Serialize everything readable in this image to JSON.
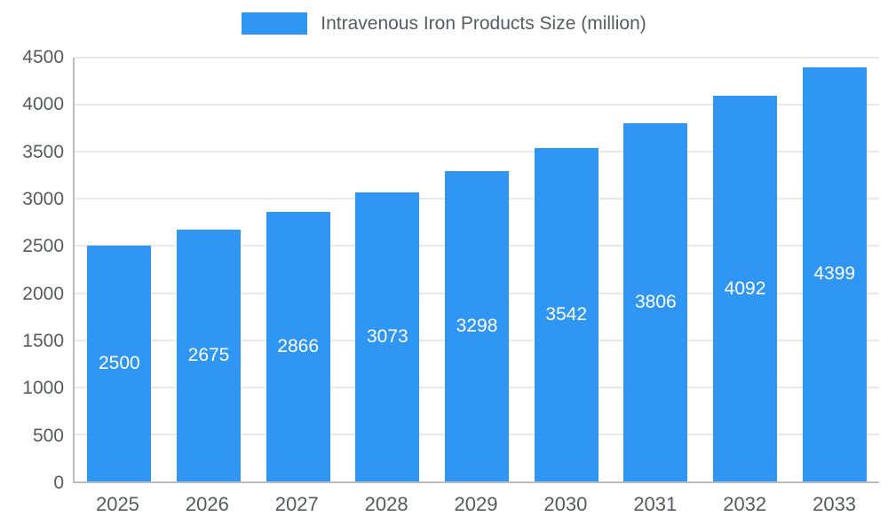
{
  "legend": {
    "label": "Intravenous Iron Products Size (million)",
    "swatch_color": "#2F96F3"
  },
  "chart_data": {
    "type": "bar",
    "title": "Intravenous Iron Products Size (million)",
    "categories": [
      "2025",
      "2026",
      "2027",
      "2028",
      "2029",
      "2030",
      "2031",
      "2032",
      "2033"
    ],
    "values": [
      2500,
      2675,
      2866,
      3073,
      3298,
      3542,
      3806,
      4092,
      4399
    ],
    "xlabel": "",
    "ylabel": "",
    "ylim": [
      0,
      4500
    ],
    "ytick_step": 500,
    "grid": true,
    "legend_position": "top",
    "bar_color": "#2F96F3",
    "value_label_color": "#ffffff",
    "axis_line_color": "#b9bdc1",
    "gridline_color": "#e9e9e9",
    "tick_label_color": "#56595e"
  }
}
